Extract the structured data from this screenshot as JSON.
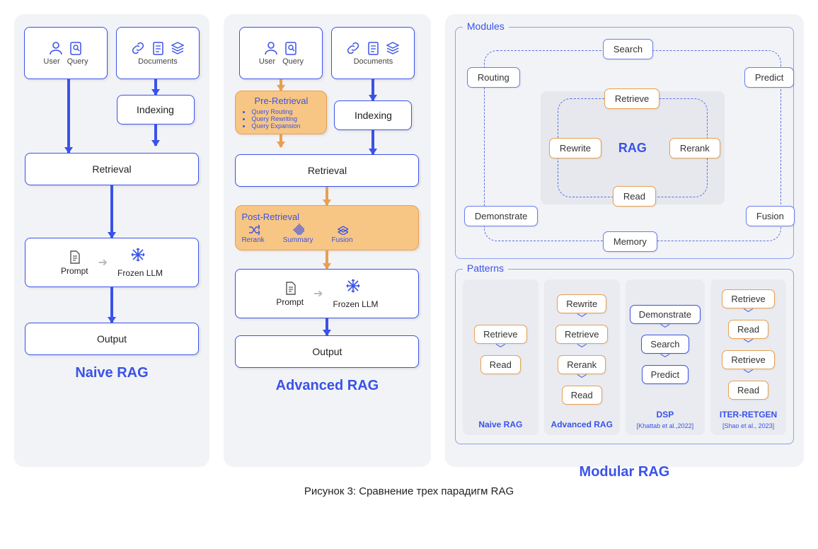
{
  "caption": "Рисунок 3: Сравнение трех парадигм RAG",
  "colors": {
    "panel_bg": "#f2f3f6",
    "box_border": "#3a52e8",
    "orange_fill": "#f7c684",
    "orange_border": "#e8a050",
    "blue": "#3a52e8",
    "inner_bg": "#e6e8ee"
  },
  "naive": {
    "title": "Naive RAG",
    "user": "User",
    "query": "Query",
    "documents": "Documents",
    "indexing": "Indexing",
    "retrieval": "Retrieval",
    "prompt": "Prompt",
    "frozen_llm": "Frozen LLM",
    "output": "Output"
  },
  "advanced": {
    "title": "Advanced RAG",
    "user": "User",
    "query": "Query",
    "documents": "Documents",
    "pre_retrieval": {
      "title": "Pre-Retrieval",
      "items": [
        "Query Routing",
        "Query Rewriting",
        "Query Expansion"
      ]
    },
    "indexing": "Indexing",
    "retrieval": "Retrieval",
    "post_retrieval": {
      "title": "Post-Retrieval",
      "items": [
        "Rerank",
        "Summary",
        "Fusion"
      ]
    },
    "prompt": "Prompt",
    "frozen_llm": "Frozen LLM",
    "output": "Output"
  },
  "modular": {
    "title": "Modular RAG",
    "modules_label": "Modules",
    "patterns_label": "Patterns",
    "rag_label": "RAG",
    "outer_nodes": {
      "search": "Search",
      "routing": "Routing",
      "predict": "Predict",
      "demonstrate": "Demonstrate",
      "fusion": "Fusion",
      "memory": "Memory"
    },
    "inner_nodes": {
      "retrieve": "Retrieve",
      "rewrite": "Rewrite",
      "rerank": "Rerank",
      "read": "Read"
    },
    "patterns": [
      {
        "name": "Naive RAG",
        "sub": "",
        "steps": [
          {
            "label": "Retrieve",
            "style": "orange"
          },
          {
            "label": "Read",
            "style": "orange"
          }
        ]
      },
      {
        "name": "Advanced RAG",
        "sub": "",
        "steps": [
          {
            "label": "Rewrite",
            "style": "orange"
          },
          {
            "label": "Retrieve",
            "style": "orange"
          },
          {
            "label": "Rerank",
            "style": "orange"
          },
          {
            "label": "Read",
            "style": "orange"
          }
        ]
      },
      {
        "name": "DSP",
        "sub": "[Khattab et al.,2022]",
        "steps": [
          {
            "label": "Demonstrate",
            "style": "blue"
          },
          {
            "label": "Search",
            "style": "blue"
          },
          {
            "label": "Predict",
            "style": "blue"
          }
        ]
      },
      {
        "name": "ITER-RETGEN",
        "sub": "[Shao et al., 2023]",
        "steps": [
          {
            "label": "Retrieve",
            "style": "orange"
          },
          {
            "label": "Read",
            "style": "orange"
          },
          {
            "label": "Retrieve",
            "style": "orange"
          },
          {
            "label": "Read",
            "style": "orange"
          }
        ]
      }
    ]
  }
}
